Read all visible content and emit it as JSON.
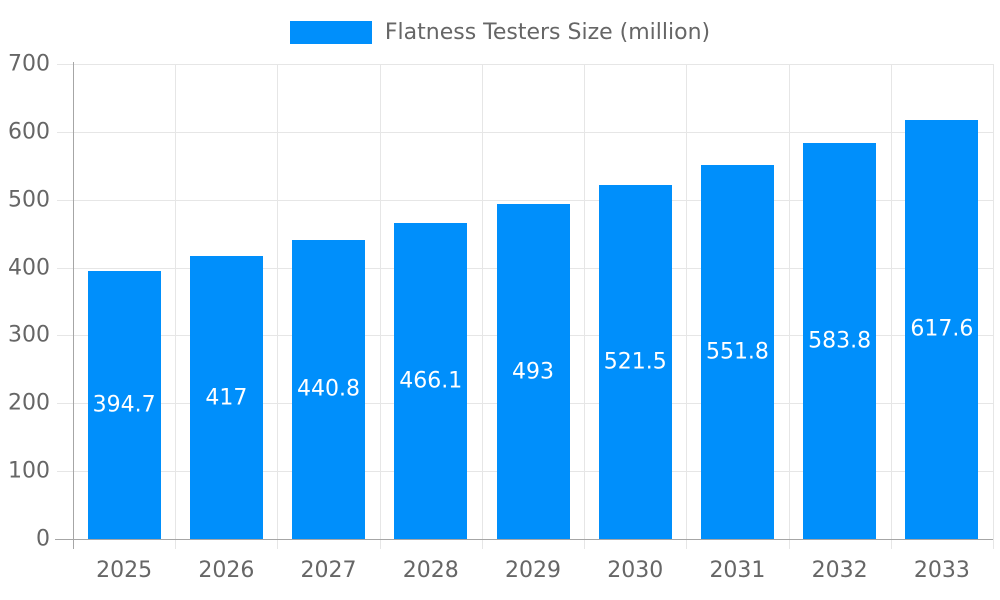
{
  "chart": {
    "legend": {
      "label": "Flatness Testers Size (million)"
    },
    "colors": {
      "bar": "#008FFB",
      "axis_label": "#666666",
      "gridline": "#e6e6e6",
      "axis_line": "#a6a6a6",
      "bar_label": "#ffffff",
      "background": "#ffffff"
    }
  },
  "chart_data": {
    "type": "bar",
    "title": "Flatness Testers Size (million)",
    "series_name": "Flatness Testers Size (million)",
    "categories": [
      "2025",
      "2026",
      "2027",
      "2028",
      "2029",
      "2030",
      "2031",
      "2032",
      "2033"
    ],
    "values": [
      394.7,
      417,
      440.8,
      466.1,
      493,
      521.5,
      551.8,
      583.8,
      617.6
    ],
    "xlabel": "",
    "ylabel": "",
    "ylim": [
      0,
      700
    ],
    "ytick_step": 100,
    "yticks": [
      0,
      100,
      200,
      300,
      400,
      500,
      600,
      700
    ],
    "grid": true,
    "legend_position": "top-center",
    "bar_color": "#008FFB",
    "data_labels": "values shown in white, centered inside each bar"
  }
}
